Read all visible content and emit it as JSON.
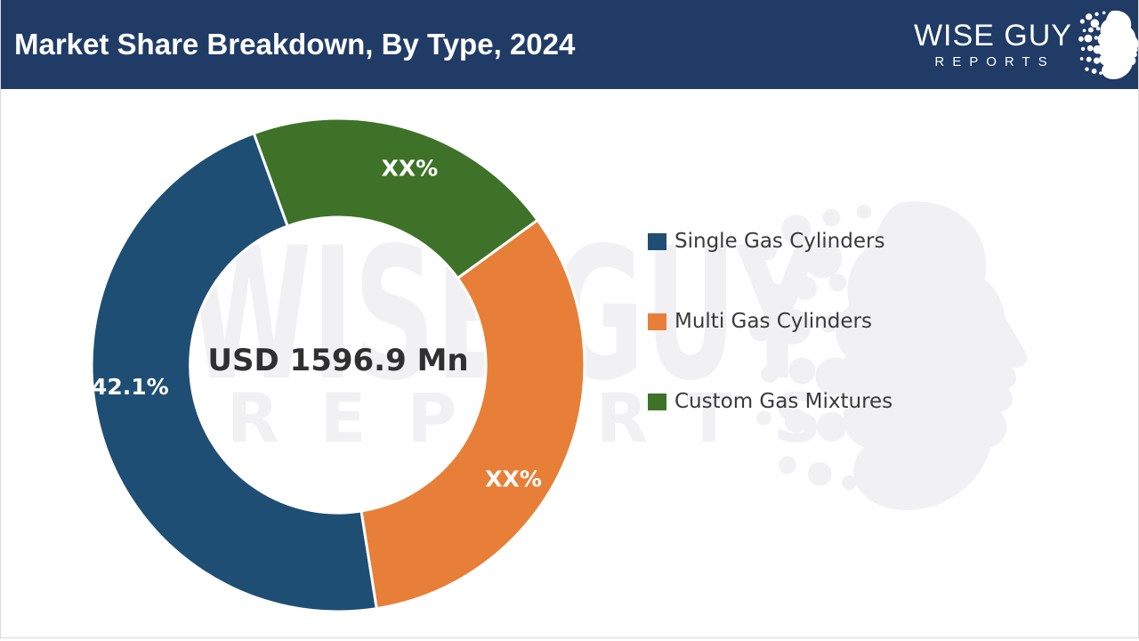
{
  "header": {
    "title": "Market Share Breakdown, By Type, 2024",
    "logo": {
      "wordmark": "WISE GUY",
      "subtitle": "REPORTS"
    }
  },
  "watermark": {
    "line1": "WISE GUY",
    "line2": "REPORTS"
  },
  "chart_data": {
    "type": "pie",
    "subtype": "donut",
    "title": "Market Share Breakdown, By Type, 2024",
    "center_label": "USD 1596.9 Mn",
    "legend_position": "right",
    "segments": [
      {
        "label": "Single Gas Cylinders",
        "value_display": "42.1%",
        "value_pct": 42.1,
        "color": "#1f4e74",
        "start_deg": 171,
        "end_deg": 340,
        "label_deg": 264
      },
      {
        "label": "Multi Gas Cylinders",
        "value_display": "XX%",
        "value_pct": null,
        "color": "#e87f38",
        "start_deg": 54,
        "end_deg": 171,
        "label_deg": 123
      },
      {
        "label": "Custom Gas Mixtures",
        "value_display": "XX%",
        "value_pct": null,
        "color": "#3f7229",
        "start_deg": 340,
        "end_deg": 414,
        "label_deg": 20
      }
    ]
  },
  "style": {
    "header_bg": "#1f3b66",
    "slice_blue": "#1f4e74",
    "slice_orange": "#e87f38",
    "slice_green": "#3f7229",
    "center_text": "#303030",
    "watermark": "#f1f1f4"
  }
}
